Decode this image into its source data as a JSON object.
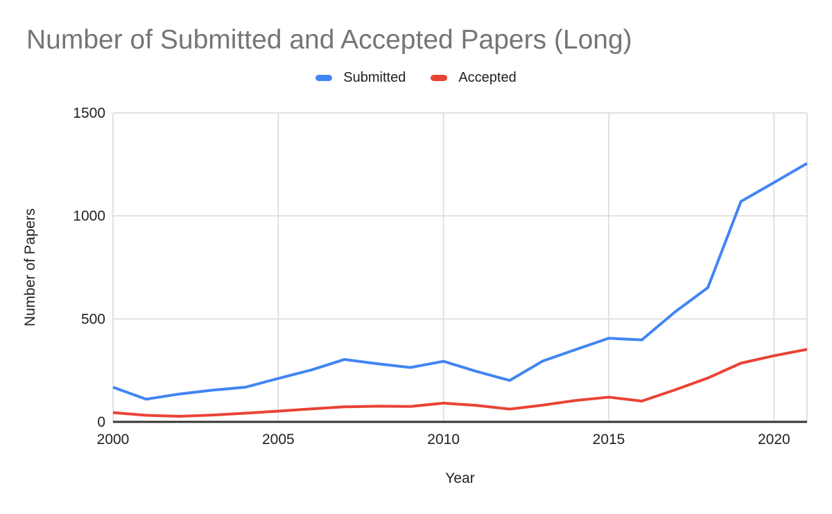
{
  "chart_data": {
    "type": "line",
    "title": "Number of Submitted and Accepted Papers (Long)",
    "xlabel": "Year",
    "ylabel": "Number of Papers",
    "x": [
      2000,
      2001,
      2002,
      2003,
      2004,
      2005,
      2006,
      2007,
      2008,
      2009,
      2010,
      2011,
      2012,
      2013,
      2014,
      2015,
      2016,
      2017,
      2018,
      2019,
      2020,
      2021
    ],
    "series": [
      {
        "name": "Submitted",
        "color": "#4285F4",
        "values": [
          168,
          110,
          135,
          154,
          168,
          211,
          252,
          303,
          282,
          264,
          294,
          245,
          201,
          295,
          351,
          406,
          398,
          533,
          652,
          1070,
          1162,
          1255
        ]
      },
      {
        "name": "Accepted",
        "color": "#EA4335",
        "values": [
          45,
          32,
          27,
          33,
          42,
          52,
          63,
          73,
          76,
          75,
          91,
          80,
          62,
          81,
          104,
          120,
          101,
          155,
          213,
          285,
          321,
          352
        ]
      }
    ],
    "xlim": [
      2000,
      2021
    ],
    "ylim": [
      0,
      1500
    ],
    "xticks": [
      2000,
      2005,
      2010,
      2015,
      2020
    ],
    "yticks": [
      0,
      500,
      1000,
      1500
    ],
    "grid": true,
    "legend_position": "top",
    "colors": {
      "grid": "#d9d9d9",
      "axis": "#333333",
      "title_text": "#757575",
      "tick_text": "#212121"
    }
  }
}
